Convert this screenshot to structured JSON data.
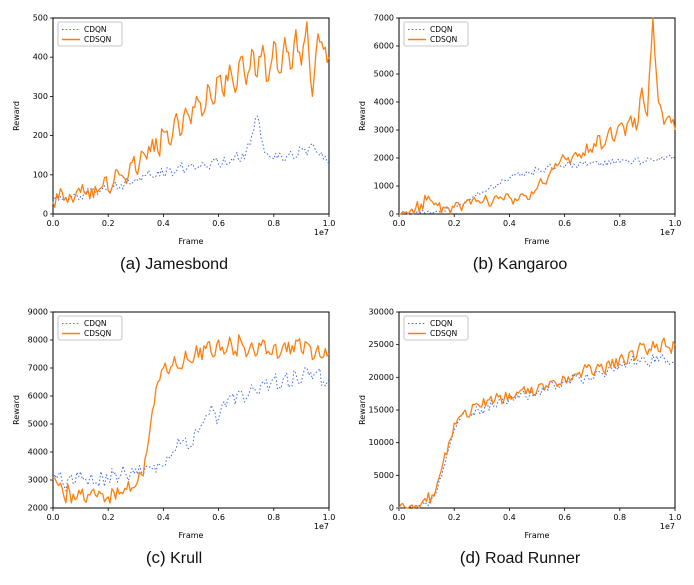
{
  "page": {
    "background": "#ffffff"
  },
  "colors": {
    "cdqn": "#4169e1",
    "cdsqn": "#ff7f0e",
    "axis": "#000000",
    "legend_border": "#b5b5b5"
  },
  "legend": {
    "labels": [
      "CDQN",
      "CDSQN"
    ],
    "position": "upper-left"
  },
  "chart_data": [
    {
      "id": "jamesbond",
      "type": "line",
      "caption_label": "(a)",
      "caption_name": "Jamesbond",
      "xlabel": "Frame",
      "ylabel": "Reward",
      "x_offset_label": "1e7",
      "xlim": [
        0.0,
        1.0
      ],
      "ylim": [
        0,
        500
      ],
      "xticks": [
        0.0,
        0.2,
        0.4,
        0.6,
        0.8,
        1.0
      ],
      "yticks": [
        0,
        100,
        200,
        300,
        400,
        500
      ],
      "grid": false,
      "series": [
        {
          "name": "CDQN",
          "style": "dotted",
          "color_key": "cdqn",
          "jitter": 14,
          "values": [
            30,
            35,
            40,
            38,
            50,
            45,
            55,
            60,
            50,
            65,
            60,
            70,
            65,
            80,
            75,
            90,
            85,
            100,
            95,
            110,
            100,
            115,
            105,
            120,
            110,
            125,
            115,
            130,
            120,
            140,
            125,
            145,
            130,
            150,
            135,
            160,
            200,
            250,
            180,
            150,
            140,
            155,
            135,
            160,
            145,
            170,
            150,
            180,
            155,
            140,
            130
          ]
        },
        {
          "name": "CDSQN",
          "style": "solid",
          "color_key": "cdsqn",
          "jitter": 32,
          "values": [
            30,
            40,
            35,
            50,
            45,
            55,
            50,
            65,
            55,
            70,
            60,
            80,
            100,
            90,
            130,
            110,
            160,
            140,
            190,
            160,
            210,
            180,
            240,
            200,
            270,
            230,
            300,
            250,
            330,
            280,
            350,
            300,
            380,
            310,
            400,
            330,
            420,
            350,
            430,
            340,
            440,
            360,
            450,
            370,
            470,
            380,
            490,
            300,
            460,
            420,
            400
          ]
        }
      ]
    },
    {
      "id": "kangaroo",
      "type": "line",
      "caption_label": "(b)",
      "caption_name": "Kangaroo",
      "xlabel": "Frame",
      "ylabel": "Reward",
      "x_offset_label": "1e7",
      "xlim": [
        0.0,
        1.0
      ],
      "ylim": [
        0,
        7000
      ],
      "xticks": [
        0.0,
        0.2,
        0.4,
        0.6,
        0.8,
        1.0
      ],
      "yticks": [
        0,
        1000,
        2000,
        3000,
        4000,
        5000,
        6000,
        7000
      ],
      "grid": false,
      "series": [
        {
          "name": "CDQN",
          "style": "dotted",
          "color_key": "cdqn",
          "jitter": 120,
          "values": [
            0,
            20,
            30,
            50,
            40,
            60,
            80,
            100,
            150,
            180,
            250,
            350,
            450,
            550,
            650,
            750,
            850,
            950,
            1050,
            1200,
            1300,
            1400,
            1350,
            1500,
            1450,
            1600,
            1550,
            1700,
            1600,
            1750,
            1650,
            1800,
            1700,
            1850,
            1750,
            1800,
            1850,
            1750,
            1900,
            1800,
            1850,
            1900,
            1800,
            1950,
            1850,
            2000,
            1900,
            2000,
            1950,
            2100,
            1950
          ]
        },
        {
          "name": "CDSQN",
          "style": "solid",
          "color_key": "cdsqn",
          "jitter": 260,
          "values": [
            0,
            50,
            100,
            200,
            350,
            500,
            450,
            300,
            250,
            200,
            250,
            300,
            400,
            350,
            450,
            400,
            500,
            450,
            550,
            500,
            600,
            550,
            700,
            650,
            800,
            900,
            1100,
            1300,
            1600,
            1800,
            2000,
            1800,
            2200,
            2000,
            2500,
            2200,
            2800,
            2400,
            3000,
            2600,
            3200,
            2800,
            3500,
            3000,
            4500,
            3500,
            7000,
            4000,
            3200,
            3500,
            3000
          ]
        }
      ]
    },
    {
      "id": "krull",
      "type": "line",
      "caption_label": "(c)",
      "caption_name": "Krull",
      "xlabel": "Frame",
      "ylabel": "Reward",
      "x_offset_label": "1e7",
      "xlim": [
        0.0,
        1.0
      ],
      "ylim": [
        2000,
        9000
      ],
      "xticks": [
        0.0,
        0.2,
        0.4,
        0.6,
        0.8,
        1.0
      ],
      "yticks": [
        2000,
        3000,
        4000,
        5000,
        6000,
        7000,
        8000,
        9000
      ],
      "grid": false,
      "series": [
        {
          "name": "CDQN",
          "style": "dotted",
          "color_key": "cdqn",
          "jitter": 300,
          "values": [
            3000,
            3200,
            2800,
            3100,
            2900,
            3300,
            3000,
            3200,
            2900,
            3100,
            3000,
            3200,
            3100,
            3300,
            3200,
            3400,
            3300,
            3500,
            3400,
            3600,
            3500,
            3800,
            4000,
            4300,
            4500,
            4200,
            4800,
            5000,
            5300,
            5500,
            5200,
            5800,
            6000,
            5700,
            6200,
            5900,
            6400,
            6100,
            6500,
            6200,
            6600,
            6300,
            6700,
            6400,
            6800,
            6500,
            7000,
            6600,
            6900,
            6500,
            6600
          ]
        },
        {
          "name": "CDSQN",
          "style": "solid",
          "color_key": "cdsqn",
          "jitter": 320,
          "values": [
            3100,
            2800,
            2400,
            2600,
            2300,
            2500,
            2200,
            2600,
            2400,
            2500,
            2400,
            2600,
            2500,
            2700,
            2600,
            2800,
            3200,
            4000,
            5500,
            6500,
            7000,
            6800,
            7400,
            7000,
            7600,
            7200,
            7800,
            7300,
            7900,
            7400,
            8000,
            7500,
            8100,
            7600,
            8000,
            7400,
            7900,
            7500,
            8000,
            7600,
            7800,
            7400,
            7900,
            7500,
            8000,
            7600,
            7900,
            7300,
            7800,
            7400,
            7500
          ]
        }
      ]
    },
    {
      "id": "road-runner",
      "type": "line",
      "caption_label": "(d)",
      "caption_name": "Road Runner",
      "xlabel": "Frame",
      "ylabel": "Reward",
      "x_offset_label": "1e7",
      "xlim": [
        0.0,
        1.0
      ],
      "ylim": [
        0,
        30000
      ],
      "xticks": [
        0.0,
        0.2,
        0.4,
        0.6,
        0.8,
        1.0
      ],
      "yticks": [
        0,
        5000,
        10000,
        15000,
        20000,
        25000,
        30000
      ],
      "grid": false,
      "series": [
        {
          "name": "CDQN",
          "style": "dotted",
          "color_key": "cdqn",
          "jitter": 900,
          "values": [
            0,
            100,
            200,
            300,
            500,
            800,
            1500,
            3000,
            6000,
            9000,
            12000,
            13500,
            14500,
            14000,
            15500,
            15000,
            16000,
            15500,
            16500,
            16000,
            17000,
            16500,
            17500,
            17000,
            18000,
            17500,
            18500,
            18000,
            19000,
            18500,
            19500,
            19000,
            20000,
            19500,
            20500,
            20000,
            21000,
            20500,
            21500,
            21000,
            22000,
            21500,
            22500,
            22000,
            23000,
            22000,
            23500,
            22500,
            23000,
            22000,
            22500
          ]
        },
        {
          "name": "CDSQN",
          "style": "solid",
          "color_key": "cdsqn",
          "jitter": 1000,
          "values": [
            0,
            200,
            300,
            400,
            600,
            1000,
            2000,
            4000,
            7000,
            10000,
            13000,
            14000,
            15000,
            14500,
            16000,
            15500,
            16500,
            16000,
            17000,
            16500,
            17500,
            17000,
            18000,
            17500,
            18500,
            18000,
            19000,
            18500,
            19500,
            19000,
            20000,
            19500,
            20500,
            20000,
            21500,
            20500,
            22000,
            21000,
            22500,
            21500,
            23000,
            22000,
            24000,
            23000,
            25000,
            23500,
            25500,
            24000,
            26000,
            24500,
            25000
          ]
        }
      ]
    }
  ]
}
